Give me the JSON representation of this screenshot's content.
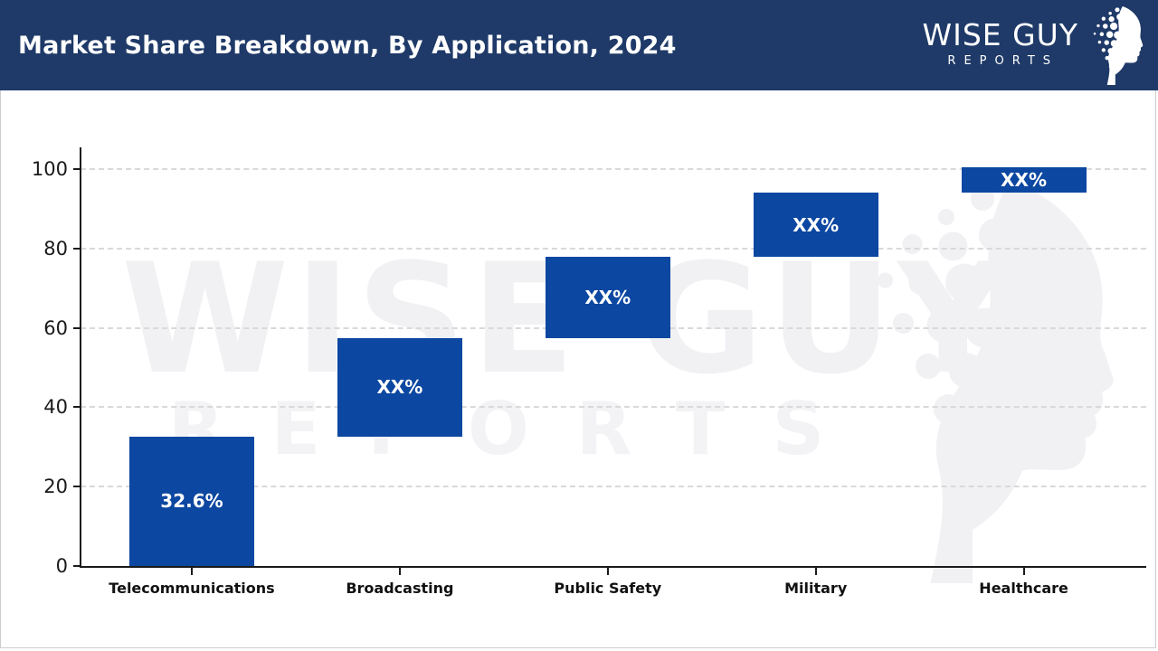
{
  "header": {
    "title": "Market Share Breakdown, By Application, 2024",
    "logo": {
      "line1": "WISE GUY",
      "line2": "REPORTS"
    }
  },
  "watermark": {
    "line1": "WISE GUY",
    "line2": "REPORTS"
  },
  "colors": {
    "header_bg": "#1f3a68",
    "bar": "#0c47a1",
    "bar_label": "#ffffff",
    "grid": "#d9d9d9",
    "axis": "#1a1a1a",
    "watermark": "#f1f1f4"
  },
  "chart_data": {
    "type": "bar",
    "subtype": "waterfall",
    "title": "Market Share Breakdown, By Application, 2024",
    "xlabel": "",
    "ylabel": "",
    "categories": [
      "Telecommunications",
      "Broadcasting",
      "Public Safety",
      "Military",
      "Healthcare"
    ],
    "segments": [
      {
        "category": "Telecommunications",
        "start": 0,
        "end": 32.6,
        "label": "32.6%"
      },
      {
        "category": "Broadcasting",
        "start": 32.6,
        "end": 57.5,
        "label": "XX%"
      },
      {
        "category": "Public Safety",
        "start": 57.4,
        "end": 77.8,
        "label": "XX%"
      },
      {
        "category": "Military",
        "start": 77.8,
        "end": 94.1,
        "label": "XX%"
      },
      {
        "category": "Healthcare",
        "start": 94.0,
        "end": 100.5,
        "label": "XX%"
      }
    ],
    "yticks": [
      0,
      20,
      40,
      60,
      80,
      100
    ],
    "ylim": [
      0,
      104.5
    ],
    "grid": "dashed-horizontal",
    "legend": "none"
  }
}
